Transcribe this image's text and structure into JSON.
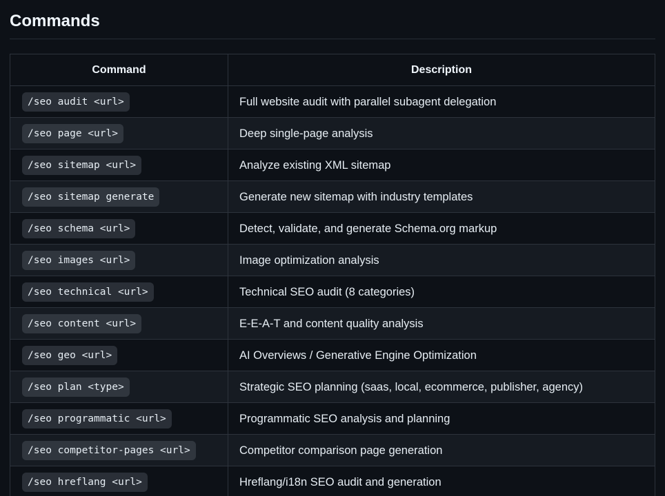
{
  "page": {
    "title": "Commands"
  },
  "colors": {
    "canvas_bg": "#0d1117",
    "row_alt_bg": "#161b22",
    "border": "#2d333c",
    "text": "#e6edf3",
    "heading_text": "#f0f6fc",
    "code_pill_bg": "#2a2f37"
  },
  "table": {
    "headers": [
      "Command",
      "Description"
    ],
    "rows": [
      {
        "command": "/seo audit <url>",
        "description": "Full website audit with parallel subagent delegation"
      },
      {
        "command": "/seo page <url>",
        "description": "Deep single-page analysis"
      },
      {
        "command": "/seo sitemap <url>",
        "description": "Analyze existing XML sitemap"
      },
      {
        "command": "/seo sitemap generate",
        "description": "Generate new sitemap with industry templates"
      },
      {
        "command": "/seo schema <url>",
        "description": "Detect, validate, and generate Schema.org markup"
      },
      {
        "command": "/seo images <url>",
        "description": "Image optimization analysis"
      },
      {
        "command": "/seo technical <url>",
        "description": "Technical SEO audit (8 categories)"
      },
      {
        "command": "/seo content <url>",
        "description": "E-E-A-T and content quality analysis"
      },
      {
        "command": "/seo geo <url>",
        "description": "AI Overviews / Generative Engine Optimization"
      },
      {
        "command": "/seo plan <type>",
        "description": "Strategic SEO planning (saas, local, ecommerce, publisher, agency)"
      },
      {
        "command": "/seo programmatic <url>",
        "description": "Programmatic SEO analysis and planning"
      },
      {
        "command": "/seo competitor-pages <url>",
        "description": "Competitor comparison page generation"
      },
      {
        "command": "/seo hreflang <url>",
        "description": "Hreflang/i18n SEO audit and generation"
      }
    ]
  }
}
